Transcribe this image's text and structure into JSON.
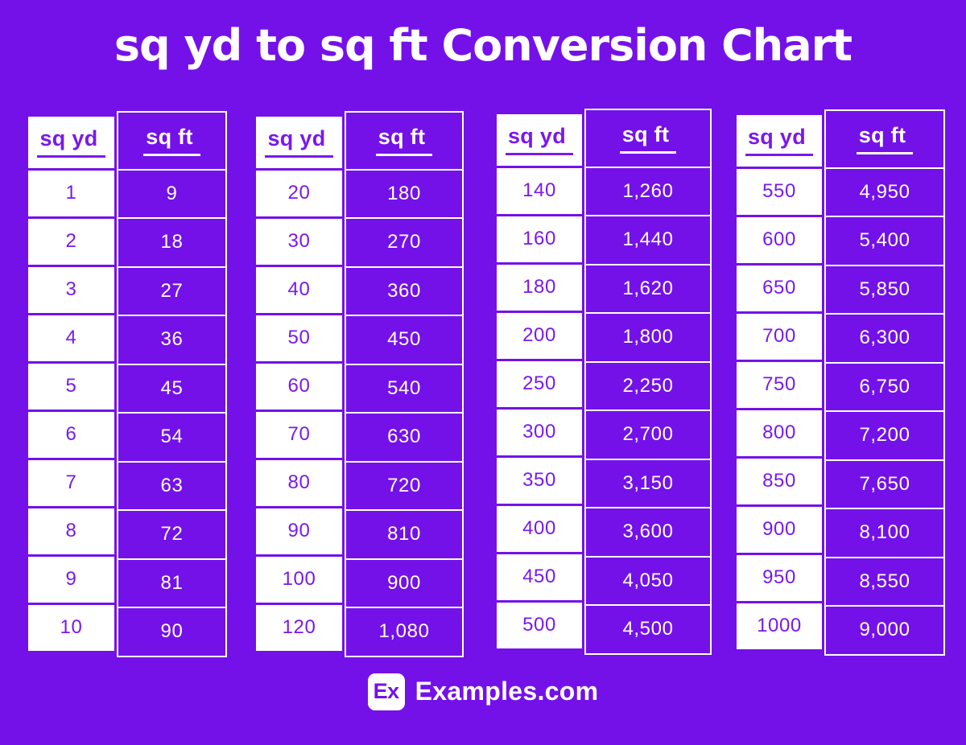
{
  "page": {
    "title": "sq yd to sq ft Conversion Chart"
  },
  "colors": {
    "background_purple": "#7411E9",
    "cell_purple": "#7411E9",
    "text_purple": "#7A18EE",
    "white": "#FFFFFF"
  },
  "tables": [
    {
      "col1_header": "sq yd",
      "col2_header": "sq ft",
      "rows": [
        [
          "1",
          "9"
        ],
        [
          "2",
          "18"
        ],
        [
          "3",
          "27"
        ],
        [
          "4",
          "36"
        ],
        [
          "5",
          "45"
        ],
        [
          "6",
          "54"
        ],
        [
          "7",
          "63"
        ],
        [
          "8",
          "72"
        ],
        [
          "9",
          "81"
        ],
        [
          "10",
          "90"
        ]
      ]
    },
    {
      "col1_header": "sq yd",
      "col2_header": "sq ft",
      "rows": [
        [
          "20",
          "180"
        ],
        [
          "30",
          "270"
        ],
        [
          "40",
          "360"
        ],
        [
          "50",
          "450"
        ],
        [
          "60",
          "540"
        ],
        [
          "70",
          "630"
        ],
        [
          "80",
          "720"
        ],
        [
          "90",
          "810"
        ],
        [
          "100",
          "900"
        ],
        [
          "120",
          "1,080"
        ]
      ]
    },
    {
      "col1_header": "sq yd",
      "col2_header": "sq ft",
      "rows": [
        [
          "140",
          "1,260"
        ],
        [
          "160",
          "1,440"
        ],
        [
          "180",
          "1,620"
        ],
        [
          "200",
          "1,800"
        ],
        [
          "250",
          "2,250"
        ],
        [
          "300",
          "2,700"
        ],
        [
          "350",
          "3,150"
        ],
        [
          "400",
          "3,600"
        ],
        [
          "450",
          "4,050"
        ],
        [
          "500",
          "4,500"
        ]
      ]
    },
    {
      "col1_header": "sq yd",
      "col2_header": "sq ft",
      "rows": [
        [
          "550",
          "4,950"
        ],
        [
          "600",
          "5,400"
        ],
        [
          "650",
          "5,850"
        ],
        [
          "700",
          "6,300"
        ],
        [
          "750",
          "6,750"
        ],
        [
          "800",
          "7,200"
        ],
        [
          "850",
          "7,650"
        ],
        [
          "900",
          "8,100"
        ],
        [
          "950",
          "8,550"
        ],
        [
          "1000",
          "9,000"
        ]
      ]
    }
  ],
  "footer": {
    "logo_text": "Ex",
    "site_name": "Examples.com"
  },
  "chart_data": {
    "type": "table",
    "title": "sq yd to sq ft Conversion Chart",
    "columns": [
      "sq yd",
      "sq ft"
    ],
    "rows": [
      [
        1,
        9
      ],
      [
        2,
        18
      ],
      [
        3,
        27
      ],
      [
        4,
        36
      ],
      [
        5,
        45
      ],
      [
        6,
        54
      ],
      [
        7,
        63
      ],
      [
        8,
        72
      ],
      [
        9,
        81
      ],
      [
        10,
        90
      ],
      [
        20,
        180
      ],
      [
        30,
        270
      ],
      [
        40,
        360
      ],
      [
        50,
        450
      ],
      [
        60,
        540
      ],
      [
        70,
        630
      ],
      [
        80,
        720
      ],
      [
        90,
        810
      ],
      [
        100,
        900
      ],
      [
        120,
        1080
      ],
      [
        140,
        1260
      ],
      [
        160,
        1440
      ],
      [
        180,
        1620
      ],
      [
        200,
        1800
      ],
      [
        250,
        2250
      ],
      [
        300,
        2700
      ],
      [
        350,
        3150
      ],
      [
        400,
        3600
      ],
      [
        450,
        4050
      ],
      [
        500,
        4500
      ],
      [
        550,
        4950
      ],
      [
        600,
        5400
      ],
      [
        650,
        5850
      ],
      [
        700,
        6300
      ],
      [
        750,
        6750
      ],
      [
        800,
        7200
      ],
      [
        850,
        7650
      ],
      [
        900,
        8100
      ],
      [
        950,
        8550
      ],
      [
        1000,
        9000
      ]
    ]
  }
}
